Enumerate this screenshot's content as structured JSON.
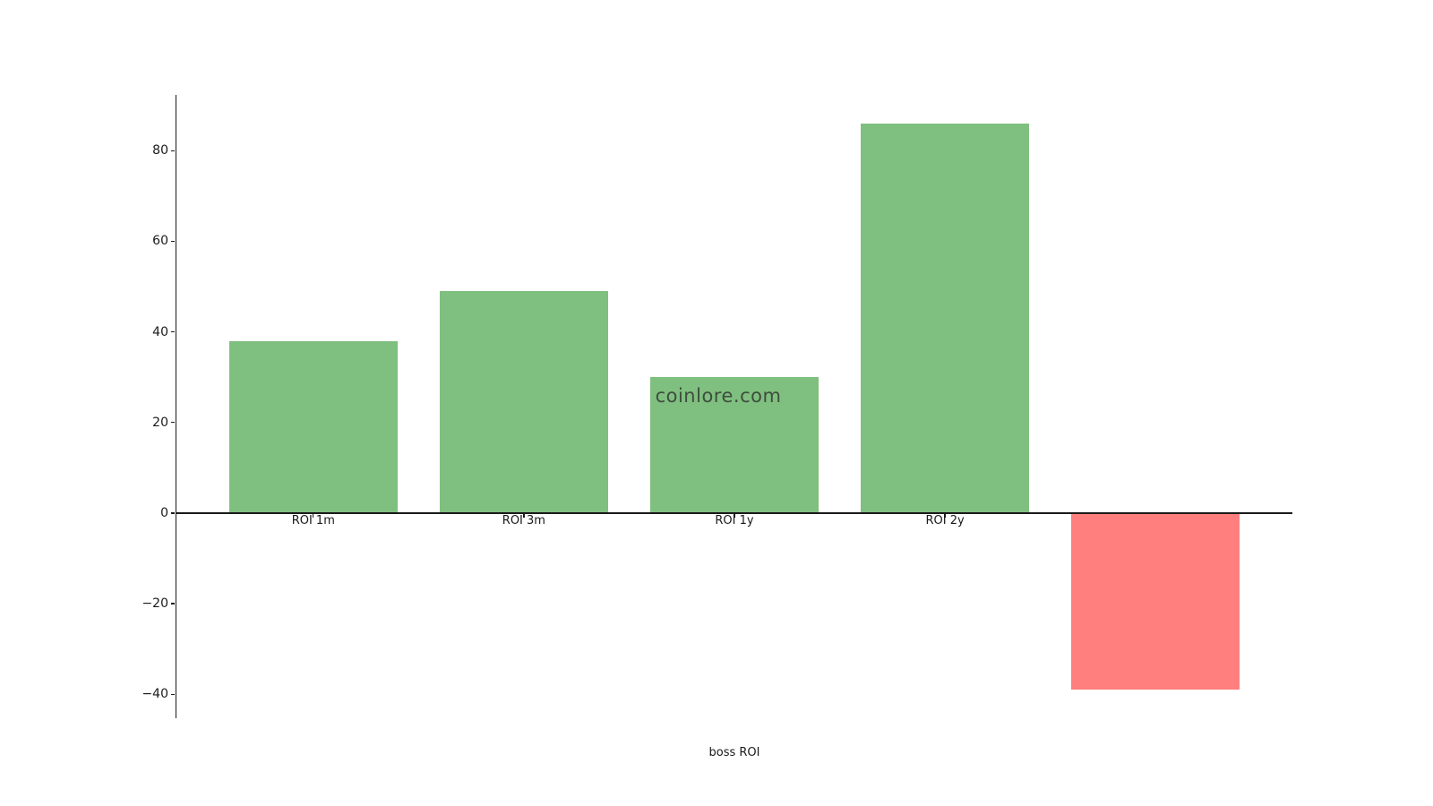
{
  "watermark": "coinlore.com",
  "chart_data": {
    "type": "bar",
    "title": "",
    "xlabel": "boss ROI",
    "ylabel": "",
    "categories": [
      "ROI 1m",
      "ROI 3m",
      "ROI 1y",
      "ROI 2y",
      ""
    ],
    "values": [
      38,
      49,
      30,
      86,
      -39
    ],
    "positive_color": "#7fbf7f",
    "negative_color": "#ff7f7f",
    "axis_color": "#1a1a1a",
    "yticks": [
      80,
      60,
      40,
      20,
      0,
      -20,
      -40
    ],
    "ytick_labels": [
      "80",
      "60",
      "40",
      "20",
      "0",
      "−20",
      "−40"
    ],
    "ylim": [
      -45.3,
      92.3
    ],
    "xlim": [
      -0.65,
      4.65
    ],
    "bar_width": 0.8,
    "grid": false,
    "legend": null,
    "watermark": "coinlore.com"
  }
}
